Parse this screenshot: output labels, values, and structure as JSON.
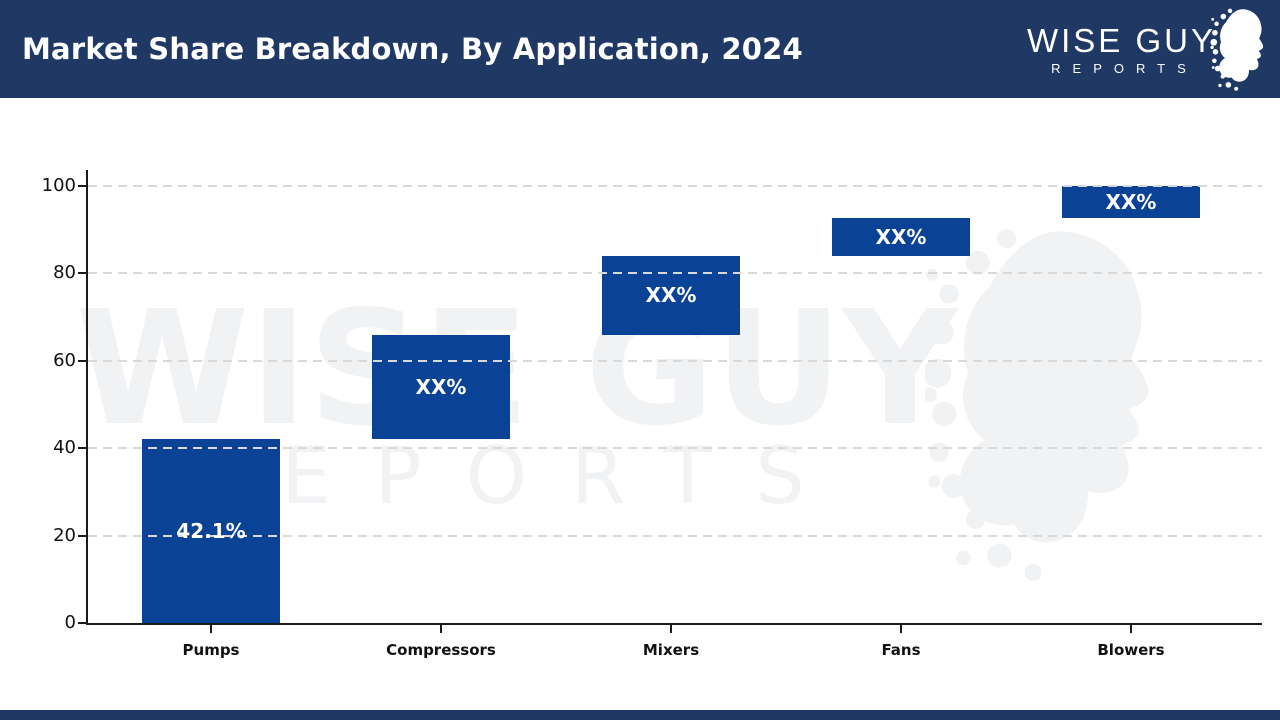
{
  "header": {
    "title": "Market Share Breakdown, By Application, 2024"
  },
  "logo": {
    "line1": "WISE GUY",
    "line2": "REPORTS",
    "head_icon": "dotted-face-profile"
  },
  "watermark": {
    "line1": "WISE GUY",
    "line2": "REPORTS",
    "head_icon": "dotted-face-profile"
  },
  "colors": {
    "header_bg": "#1F3864",
    "footer_bg": "#1F3864",
    "title_text": "#ffffff",
    "bar": "#0A4296",
    "bar_label_text": "#ffffff",
    "gridline": "#d9d9d9",
    "axis": "#1a1a1a",
    "tick_label_text": "#111111",
    "watermark": "#f1f2f4"
  },
  "chart_data": {
    "type": "bar",
    "subtype": "floating-waterfall",
    "title": "Market Share Breakdown, By Application, 2024",
    "xlabel": "",
    "ylabel": "",
    "categories": [
      "Pumps",
      "Compressors",
      "Mixers",
      "Fans",
      "Blowers"
    ],
    "segments": [
      {
        "category": "Pumps",
        "start": 0,
        "end": 42.1,
        "label": "42.1%"
      },
      {
        "category": "Compressors",
        "start": 42.1,
        "end": 66,
        "label": "XX%"
      },
      {
        "category": "Mixers",
        "start": 66,
        "end": 84,
        "label": "XX%"
      },
      {
        "category": "Fans",
        "start": 84,
        "end": 92.7,
        "label": "XX%"
      },
      {
        "category": "Blowers",
        "start": 92.7,
        "end": 100,
        "label": "XX%"
      }
    ],
    "yticks": [
      0,
      20,
      40,
      60,
      80,
      100
    ],
    "ylim": [
      0,
      103.7
    ],
    "grid": "dashed-horizontal-over-bars",
    "legend": "none"
  }
}
